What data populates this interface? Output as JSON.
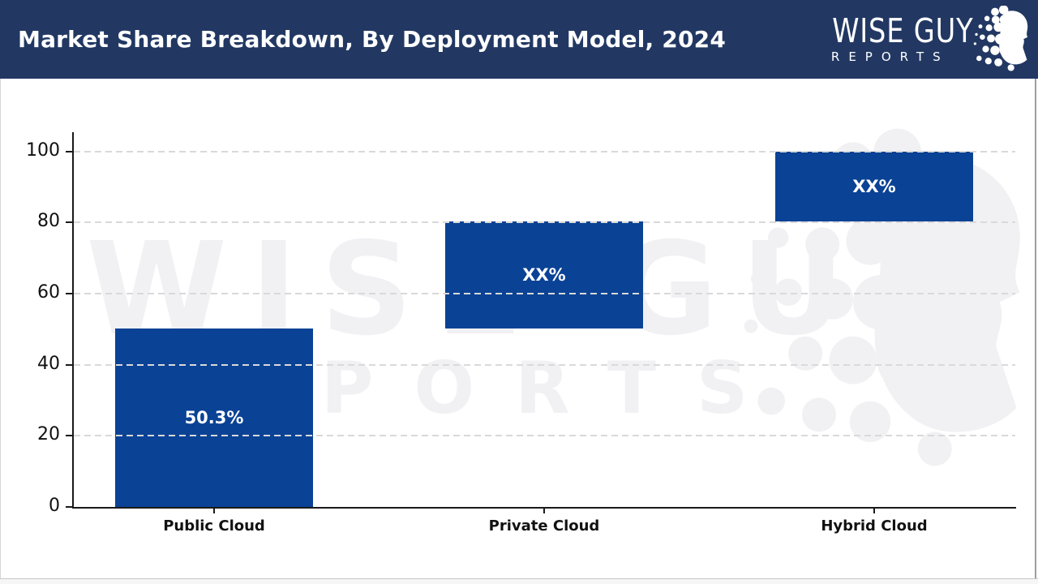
{
  "header": {
    "title": "Market Share Breakdown, By Deployment Model, 2024",
    "logo": {
      "line1": "WISE GUY",
      "line2": "REPORTS"
    }
  },
  "watermark": {
    "line1": "WISE GUY",
    "line2": "REPORTS"
  },
  "colors": {
    "header_bg": "#223863",
    "bar": "#0a4295",
    "grid": "#d9d9d9",
    "axis": "#1a1a1a",
    "tick_text": "#111111",
    "bar_label_text": "#ffffff",
    "watermark": "#f1f1f4"
  },
  "chart_data": {
    "type": "bar",
    "variant": "floating-segment-waterfall",
    "title": "Market Share Breakdown, By Deployment Model, 2024",
    "categories": [
      "Public Cloud",
      "Private Cloud",
      "Hybrid Cloud"
    ],
    "segments": [
      {
        "category": "Public Cloud",
        "start": 0,
        "end": 50.3,
        "label": "50.3%"
      },
      {
        "category": "Private Cloud",
        "start": 50.3,
        "end": 80.3,
        "label": "XX%"
      },
      {
        "category": "Hybrid Cloud",
        "start": 80.3,
        "end": 100,
        "label": "XX%"
      }
    ],
    "xlabel": "",
    "ylabel": "",
    "ylim": [
      0,
      100
    ],
    "yticks": [
      0,
      20,
      40,
      60,
      80,
      100
    ],
    "grid": "horizontal-dashed",
    "legend": "none",
    "bar_color": "#0a4295"
  }
}
